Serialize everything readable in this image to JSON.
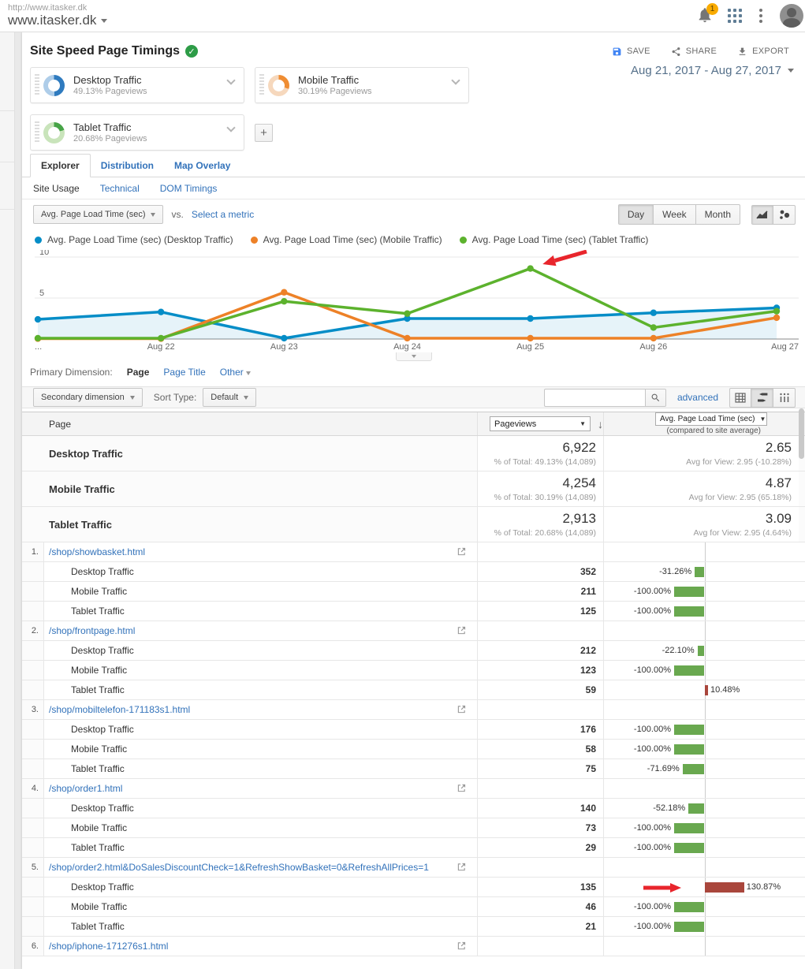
{
  "colors": {
    "accent_blue": "#4285f4",
    "link_blue": "#3272ba",
    "bar_negative_green": "#69a84f",
    "bar_positive_red": "#a9463c",
    "annotation_red": "#e8252c",
    "badge_amber": "#f9ab00"
  },
  "topbar": {
    "url": "http://www.itasker.dk",
    "account": "www.itasker.dk",
    "notification_count": "1"
  },
  "report": {
    "title": "Site Speed Page Timings",
    "save_label": "SAVE",
    "share_label": "SHARE",
    "export_label": "EXPORT",
    "date_range": "Aug 21, 2017 - Aug 27, 2017"
  },
  "segments": [
    {
      "name": "Desktop Traffic",
      "subtitle": "49.13% Pageviews",
      "percent": 49.13,
      "color": "#2f7bbf",
      "tint": "#aecde9"
    },
    {
      "name": "Mobile Traffic",
      "subtitle": "30.19% Pageviews",
      "percent": 30.19,
      "color": "#ef8d33",
      "tint": "#f6d8bd"
    },
    {
      "name": "Tablet Traffic",
      "subtitle": "20.68% Pageviews",
      "percent": 20.68,
      "color": "#47a447",
      "tint": "#c9e4bb"
    }
  ],
  "add_segment_label": "+",
  "tabs": [
    {
      "label": "Explorer"
    },
    {
      "label": "Distribution"
    },
    {
      "label": "Map Overlay"
    }
  ],
  "subtabs": [
    {
      "label": "Site Usage"
    },
    {
      "label": "Technical"
    },
    {
      "label": "DOM Timings"
    }
  ],
  "metric_bar": {
    "metric_select": "Avg. Page Load Time (sec)",
    "vs_label": "vs.",
    "select_metric_label": "Select a metric",
    "granularity": [
      "Day",
      "Week",
      "Month"
    ],
    "granularity_active": "Day"
  },
  "chart_data": {
    "type": "line",
    "x": [
      "...",
      "Aug 22",
      "Aug 23",
      "Aug 24",
      "Aug 25",
      "Aug 26",
      "Aug 27"
    ],
    "series": [
      {
        "name": "Avg. Page Load Time (sec) (Desktop Traffic)",
        "color": "#058dc7",
        "fill": true,
        "values": [
          2.4,
          3.3,
          0.1,
          2.5,
          2.5,
          3.2,
          3.8
        ]
      },
      {
        "name": "Avg. Page Load Time (sec) (Mobile Traffic)",
        "color": "#ed8127",
        "fill": false,
        "values": [
          0.05,
          0.05,
          5.7,
          0.1,
          0.1,
          0.1,
          2.6
        ]
      },
      {
        "name": "Avg. Page Load Time (sec) (Tablet Traffic)",
        "color": "#5cb22d",
        "fill": false,
        "values": [
          0.1,
          0.1,
          4.6,
          3.1,
          8.6,
          1.4,
          3.4
        ]
      }
    ],
    "ylim": [
      0,
      10
    ],
    "yticks": [
      5,
      10
    ],
    "grid": true,
    "legend_position": "top",
    "annotation": "red arrow pointing at Tablet Traffic peak on Aug 25"
  },
  "dimension_bar": {
    "label": "Primary Dimension:",
    "options": [
      "Page",
      "Page Title",
      "Other"
    ],
    "active": "Page"
  },
  "controls": {
    "secondary_dimension": "Secondary dimension",
    "sort_type_label": "Sort Type:",
    "sort_type_value": "Default",
    "search_value": "",
    "advanced_label": "advanced"
  },
  "table": {
    "columns": {
      "page": "Page",
      "pageviews": "Pageviews",
      "metric": "Avg. Page Load Time (sec)",
      "metric_caption": "(compared to site average)"
    },
    "summary_rows": [
      {
        "label": "Desktop Traffic",
        "pageviews": "6,922",
        "pageviews_sub": "% of Total: 49.13% (14,089)",
        "metric": "2.65",
        "metric_sub": "Avg for View: 2.95 (-10.28%)"
      },
      {
        "label": "Mobile Traffic",
        "pageviews": "4,254",
        "pageviews_sub": "% of Total: 30.19% (14,089)",
        "metric": "4.87",
        "metric_sub": "Avg for View: 2.95 (65.18%)"
      },
      {
        "label": "Tablet Traffic",
        "pageviews": "2,913",
        "pageviews_sub": "% of Total: 20.68% (14,089)",
        "metric": "3.09",
        "metric_sub": "Avg for View: 2.95 (4.64%)"
      }
    ],
    "page_groups": [
      {
        "index": "1.",
        "url": "/shop/showbasket.html",
        "rows": [
          {
            "segment": "Desktop Traffic",
            "pageviews": "352",
            "delta_label": "-31.26%",
            "delta": -31.26
          },
          {
            "segment": "Mobile Traffic",
            "pageviews": "211",
            "delta_label": "-100.00%",
            "delta": -100
          },
          {
            "segment": "Tablet Traffic",
            "pageviews": "125",
            "delta_label": "-100.00%",
            "delta": -100
          }
        ]
      },
      {
        "index": "2.",
        "url": "/shop/frontpage.html",
        "rows": [
          {
            "segment": "Desktop Traffic",
            "pageviews": "212",
            "delta_label": "-22.10%",
            "delta": -22.1
          },
          {
            "segment": "Mobile Traffic",
            "pageviews": "123",
            "delta_label": "-100.00%",
            "delta": -100
          },
          {
            "segment": "Tablet Traffic",
            "pageviews": "59",
            "delta_label": "10.48%",
            "delta": 10.48
          }
        ]
      },
      {
        "index": "3.",
        "url": "/shop/mobiltelefon-171183s1.html",
        "rows": [
          {
            "segment": "Desktop Traffic",
            "pageviews": "176",
            "delta_label": "-100.00%",
            "delta": -100
          },
          {
            "segment": "Mobile Traffic",
            "pageviews": "58",
            "delta_label": "-100.00%",
            "delta": -100
          },
          {
            "segment": "Tablet Traffic",
            "pageviews": "75",
            "delta_label": "-71.69%",
            "delta": -71.69
          }
        ]
      },
      {
        "index": "4.",
        "url": "/shop/order1.html",
        "rows": [
          {
            "segment": "Desktop Traffic",
            "pageviews": "140",
            "delta_label": "-52.18%",
            "delta": -52.18
          },
          {
            "segment": "Mobile Traffic",
            "pageviews": "73",
            "delta_label": "-100.00%",
            "delta": -100
          },
          {
            "segment": "Tablet Traffic",
            "pageviews": "29",
            "delta_label": "-100.00%",
            "delta": -100
          }
        ]
      },
      {
        "index": "5.",
        "url": "/shop/order2.html&DoSalesDiscountCheck=1&RefreshShowBasket=0&RefreshAllPrices=1",
        "rows": [
          {
            "segment": "Desktop Traffic",
            "pageviews": "135",
            "delta_label": "130.87%",
            "delta": 130.87,
            "annotated": true
          },
          {
            "segment": "Mobile Traffic",
            "pageviews": "46",
            "delta_label": "-100.00%",
            "delta": -100
          },
          {
            "segment": "Tablet Traffic",
            "pageviews": "21",
            "delta_label": "-100.00%",
            "delta": -100
          }
        ]
      },
      {
        "index": "6.",
        "url": "/shop/iphone-171276s1.html",
        "rows": []
      }
    ]
  }
}
